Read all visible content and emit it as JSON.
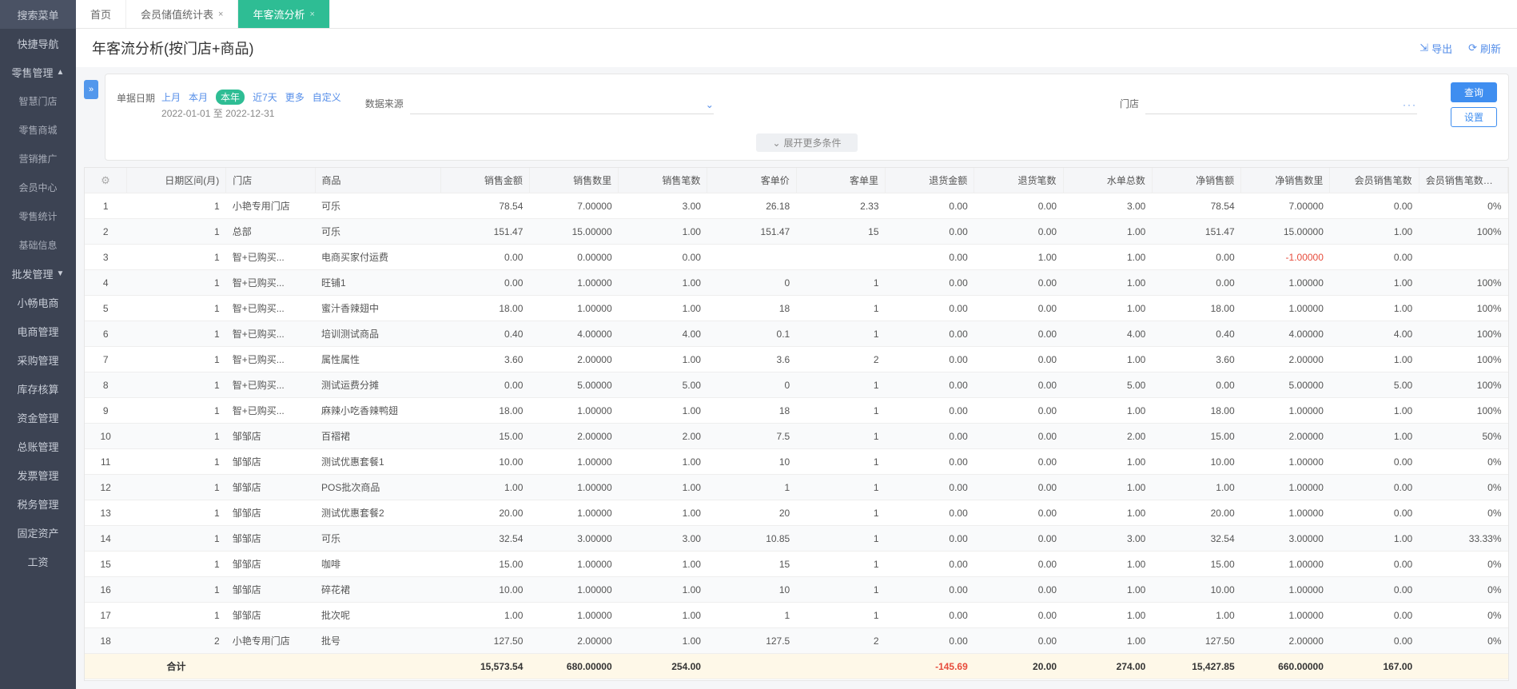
{
  "sidebar": {
    "items": [
      {
        "label": "搜索菜单",
        "type": "top"
      },
      {
        "label": "快捷导航",
        "type": "top"
      },
      {
        "label": "零售管理",
        "type": "parent",
        "expanded": true
      },
      {
        "label": "智慧门店",
        "type": "child"
      },
      {
        "label": "零售商城",
        "type": "child"
      },
      {
        "label": "营销推广",
        "type": "child"
      },
      {
        "label": "会员中心",
        "type": "child"
      },
      {
        "label": "零售统计",
        "type": "child"
      },
      {
        "label": "基础信息",
        "type": "child"
      },
      {
        "label": "批发管理",
        "type": "parent",
        "expanded": false
      },
      {
        "label": "小畅电商",
        "type": "top"
      },
      {
        "label": "电商管理",
        "type": "top"
      },
      {
        "label": "采购管理",
        "type": "top"
      },
      {
        "label": "库存核算",
        "type": "top"
      },
      {
        "label": "资金管理",
        "type": "top"
      },
      {
        "label": "总账管理",
        "type": "top"
      },
      {
        "label": "发票管理",
        "type": "top"
      },
      {
        "label": "税务管理",
        "type": "top"
      },
      {
        "label": "固定资产",
        "type": "top"
      },
      {
        "label": "工资",
        "type": "top"
      }
    ]
  },
  "tabs": [
    {
      "label": "首页",
      "closable": false,
      "active": false
    },
    {
      "label": "会员储值统计表",
      "closable": true,
      "active": false
    },
    {
      "label": "年客流分析",
      "closable": true,
      "active": true
    }
  ],
  "page": {
    "title": "年客流分析(按门店+商品)",
    "actions": {
      "export": "导出",
      "refresh": "刷新"
    }
  },
  "filters": {
    "date_label": "单据日期",
    "shortcuts": [
      "上月",
      "本月",
      "本年",
      "近7天",
      "更多",
      "自定义"
    ],
    "active_shortcut": "本年",
    "date_range": "2022-01-01 至 2022-12-31",
    "source_label": "数据来源",
    "store_label": "门店",
    "query_btn": "查询",
    "settings_btn": "设置",
    "expand_more": "展开更多条件"
  },
  "table": {
    "columns": [
      "",
      "日期区间(月)",
      "门店",
      "商品",
      "销售金额",
      "销售数里",
      "销售笔数",
      "客单价",
      "客单里",
      "退货金额",
      "退货笔数",
      "水单总数",
      "净销售额",
      "净销售数里",
      "会员销售笔数",
      "会员销售笔数占比"
    ],
    "rows": [
      [
        "1",
        "1",
        "小艳专用门店",
        "可乐",
        "78.54",
        "7.00000",
        "3.00",
        "26.18",
        "2.33",
        "0.00",
        "0.00",
        "3.00",
        "78.54",
        "7.00000",
        "0.00",
        "0%"
      ],
      [
        "2",
        "1",
        "总部",
        "可乐",
        "151.47",
        "15.00000",
        "1.00",
        "151.47",
        "15",
        "0.00",
        "0.00",
        "1.00",
        "151.47",
        "15.00000",
        "1.00",
        "100%"
      ],
      [
        "3",
        "1",
        "智+已购买...",
        "电商买家付运费",
        "0.00",
        "0.00000",
        "0.00",
        "",
        "",
        "0.00",
        "1.00",
        "1.00",
        "0.00",
        "-1.00000",
        "0.00",
        ""
      ],
      [
        "4",
        "1",
        "智+已购买...",
        "旺铺1",
        "0.00",
        "1.00000",
        "1.00",
        "0",
        "1",
        "0.00",
        "0.00",
        "1.00",
        "0.00",
        "1.00000",
        "1.00",
        "100%"
      ],
      [
        "5",
        "1",
        "智+已购买...",
        "蜜汁香辣翅中",
        "18.00",
        "1.00000",
        "1.00",
        "18",
        "1",
        "0.00",
        "0.00",
        "1.00",
        "18.00",
        "1.00000",
        "1.00",
        "100%"
      ],
      [
        "6",
        "1",
        "智+已购买...",
        "培训测试商品",
        "0.40",
        "4.00000",
        "4.00",
        "0.1",
        "1",
        "0.00",
        "0.00",
        "4.00",
        "0.40",
        "4.00000",
        "4.00",
        "100%"
      ],
      [
        "7",
        "1",
        "智+已购买...",
        "属性属性",
        "3.60",
        "2.00000",
        "1.00",
        "3.6",
        "2",
        "0.00",
        "0.00",
        "1.00",
        "3.60",
        "2.00000",
        "1.00",
        "100%"
      ],
      [
        "8",
        "1",
        "智+已购买...",
        "测试运费分摊",
        "0.00",
        "5.00000",
        "5.00",
        "0",
        "1",
        "0.00",
        "0.00",
        "5.00",
        "0.00",
        "5.00000",
        "5.00",
        "100%"
      ],
      [
        "9",
        "1",
        "智+已购买...",
        "麻辣小吃香辣鸭翅",
        "18.00",
        "1.00000",
        "1.00",
        "18",
        "1",
        "0.00",
        "0.00",
        "1.00",
        "18.00",
        "1.00000",
        "1.00",
        "100%"
      ],
      [
        "10",
        "1",
        "邹邹店",
        "百褶裙",
        "15.00",
        "2.00000",
        "2.00",
        "7.5",
        "1",
        "0.00",
        "0.00",
        "2.00",
        "15.00",
        "2.00000",
        "1.00",
        "50%"
      ],
      [
        "11",
        "1",
        "邹邹店",
        "测试优惠套餐1",
        "10.00",
        "1.00000",
        "1.00",
        "10",
        "1",
        "0.00",
        "0.00",
        "1.00",
        "10.00",
        "1.00000",
        "0.00",
        "0%"
      ],
      [
        "12",
        "1",
        "邹邹店",
        "POS批次商品",
        "1.00",
        "1.00000",
        "1.00",
        "1",
        "1",
        "0.00",
        "0.00",
        "1.00",
        "1.00",
        "1.00000",
        "0.00",
        "0%"
      ],
      [
        "13",
        "1",
        "邹邹店",
        "测试优惠套餐2",
        "20.00",
        "1.00000",
        "1.00",
        "20",
        "1",
        "0.00",
        "0.00",
        "1.00",
        "20.00",
        "1.00000",
        "0.00",
        "0%"
      ],
      [
        "14",
        "1",
        "邹邹店",
        "可乐",
        "32.54",
        "3.00000",
        "3.00",
        "10.85",
        "1",
        "0.00",
        "0.00",
        "3.00",
        "32.54",
        "3.00000",
        "1.00",
        "33.33%"
      ],
      [
        "15",
        "1",
        "邹邹店",
        "咖啡",
        "15.00",
        "1.00000",
        "1.00",
        "15",
        "1",
        "0.00",
        "0.00",
        "1.00",
        "15.00",
        "1.00000",
        "0.00",
        "0%"
      ],
      [
        "16",
        "1",
        "邹邹店",
        "碎花裙",
        "10.00",
        "1.00000",
        "1.00",
        "10",
        "1",
        "0.00",
        "0.00",
        "1.00",
        "10.00",
        "1.00000",
        "0.00",
        "0%"
      ],
      [
        "17",
        "1",
        "邹邹店",
        "批次呢",
        "1.00",
        "1.00000",
        "1.00",
        "1",
        "1",
        "0.00",
        "0.00",
        "1.00",
        "1.00",
        "1.00000",
        "0.00",
        "0%"
      ],
      [
        "18",
        "2",
        "小艳专用门店",
        "批号",
        "127.50",
        "2.00000",
        "1.00",
        "127.5",
        "2",
        "0.00",
        "0.00",
        "1.00",
        "127.50",
        "2.00000",
        "0.00",
        "0%"
      ]
    ],
    "footer_label": "合计",
    "footer": [
      "",
      "",
      "",
      "",
      "15,573.54",
      "680.00000",
      "254.00",
      "",
      "",
      "-145.69",
      "20.00",
      "274.00",
      "15,427.85",
      "660.00000",
      "167.00",
      ""
    ]
  }
}
